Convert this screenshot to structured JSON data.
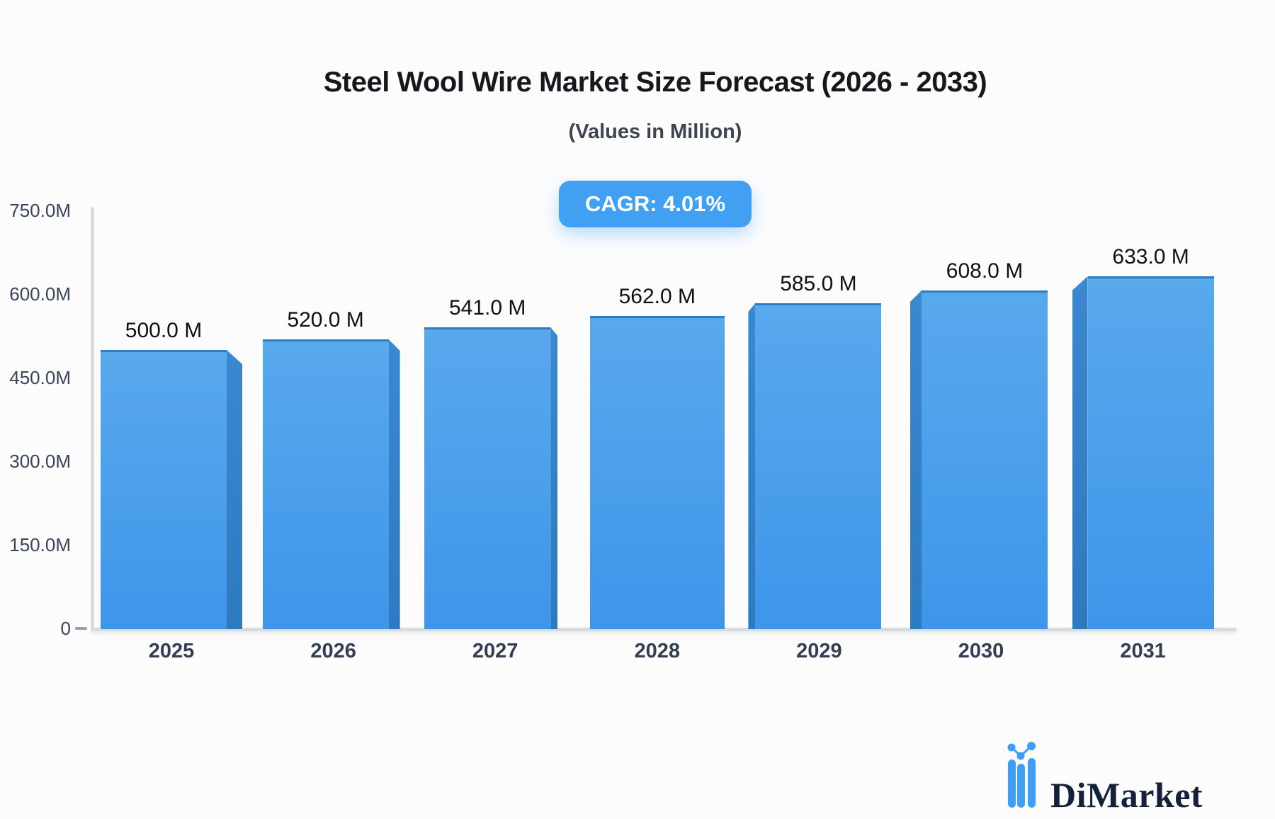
{
  "header": {
    "title": "Steel Wool Wire Market Size Forecast (2026 - 2033)",
    "subtitle": "(Values in Million)",
    "cagr_badge": "CAGR: 4.01%"
  },
  "chart_data": {
    "type": "bar",
    "title": "Steel Wool Wire Market Size Forecast (2026 - 2033)",
    "subtitle": "(Values in Million)",
    "unit": "Million",
    "cagr_percent": 4.01,
    "categories": [
      "2025",
      "2026",
      "2027",
      "2028",
      "2029",
      "2030",
      "2031"
    ],
    "values": [
      500.0,
      520.0,
      541.0,
      562.0,
      585.0,
      608.0,
      633.0
    ],
    "bar_labels": [
      "500.0 M",
      "520.0 M",
      "541.0 M",
      "562.0 M",
      "585.0 M",
      "608.0 M",
      "633.0 M"
    ],
    "y_ticks": [
      {
        "label": "0",
        "value": 0
      },
      {
        "label": "150.0M",
        "value": 150
      },
      {
        "label": "300.0M",
        "value": 300
      },
      {
        "label": "450.0M",
        "value": 450
      },
      {
        "label": "600.0M",
        "value": 600
      },
      {
        "label": "750.0M",
        "value": 750
      }
    ],
    "ylim": [
      0,
      750
    ],
    "xlabel": "",
    "ylabel": "",
    "legend": null,
    "grid": false,
    "style": "3d-bars, side shading faces plot center",
    "colors": {
      "bar_face_top": "#58a8ec",
      "bar_face_bottom": "#3e96ea",
      "bar_side_top": "#3a88cf",
      "bar_side_bottom": "#2d7ac1",
      "axis_line": "#d9dade",
      "badge_bg": "#41a0f2",
      "badge_text": "#ffffff",
      "value_label_text": "#101114",
      "axis_text": "#39455a"
    }
  },
  "logo": {
    "brand": "DiMarket",
    "icon": "bar-line-chart-icon",
    "icon_color": "#3da0f5"
  }
}
